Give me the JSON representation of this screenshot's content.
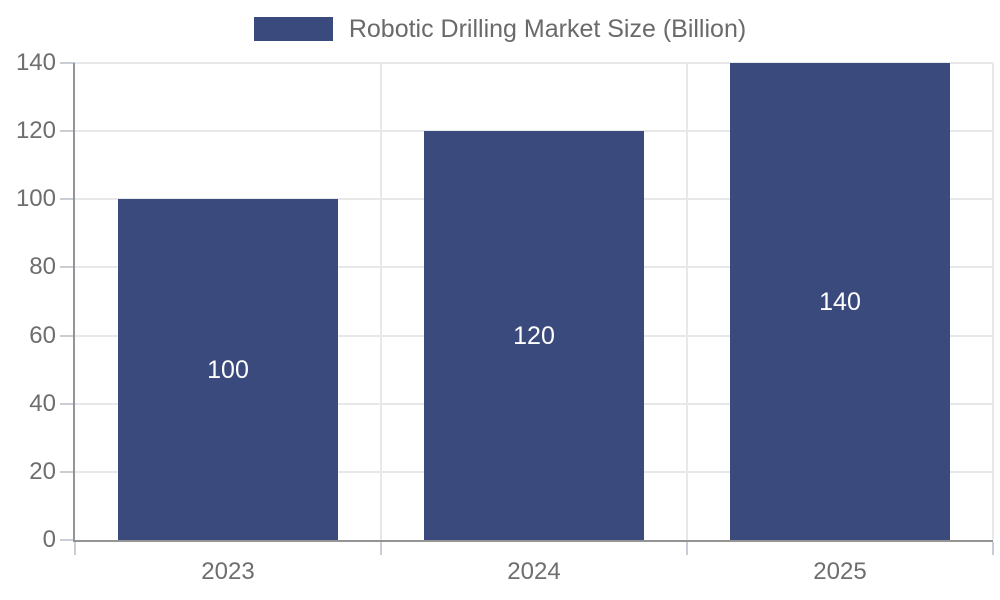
{
  "chart_data": {
    "type": "bar",
    "title": "Robotic Drilling Market Size (Billion)",
    "categories": [
      "2023",
      "2024",
      "2025"
    ],
    "values": [
      100,
      120,
      140
    ],
    "bar_labels": [
      "100",
      "120",
      "140"
    ],
    "ylim": [
      0,
      140
    ],
    "yticks": [
      0,
      20,
      40,
      60,
      80,
      100,
      120,
      140
    ],
    "grid": true,
    "legend_position": "top-center",
    "xlabel": "",
    "ylabel": "",
    "colors": {
      "bar": "#3B4A7D",
      "bar_label_text": "#FFFFFF",
      "axis": "#949494",
      "gridline": "#E8E8E8",
      "tick": "#C9CED6",
      "tick_label": "#6E6E6E",
      "legend_text": "#6A6A6A",
      "background": "#FFFFFF"
    }
  }
}
